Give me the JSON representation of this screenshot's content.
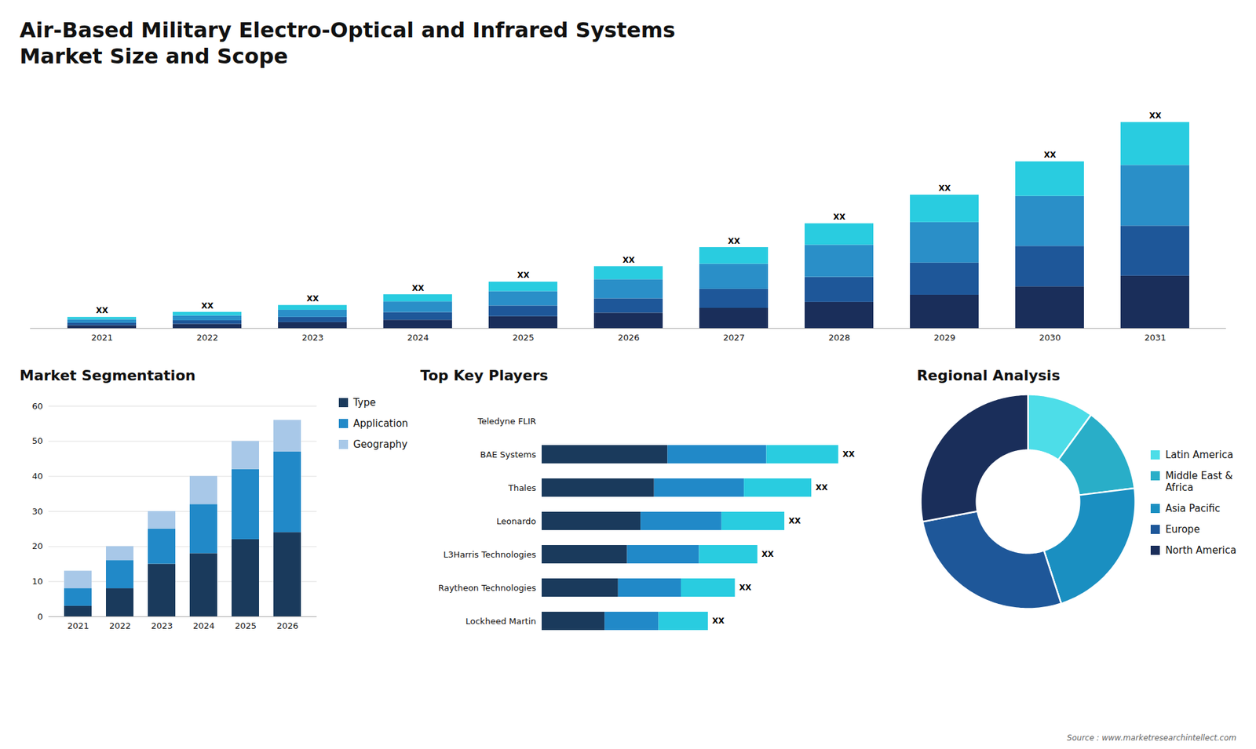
{
  "chart_data": [
    {
      "type": "bar",
      "stacked": true,
      "title": "Air-Based Military Electro-Optical and Infrared Systems",
      "subtitle": "Market Size and Scope",
      "categories": [
        "2021",
        "2022",
        "2023",
        "2024",
        "2025",
        "2026",
        "2027",
        "2028",
        "2029",
        "2030",
        "2031"
      ],
      "series": [
        {
          "color": "#1a2e5a",
          "values": [
            1.2,
            1.8,
            2.5,
            3.5,
            5.0,
            6.5,
            8.5,
            11.0,
            14.0,
            17.5,
            22.0
          ]
        },
        {
          "color": "#1e5799",
          "values": [
            1.0,
            1.5,
            2.2,
            3.2,
            4.5,
            6.0,
            8.0,
            10.5,
            13.5,
            17.0,
            21.0
          ]
        },
        {
          "color": "#2a8fc8",
          "values": [
            1.5,
            2.0,
            3.0,
            4.5,
            6.0,
            8.0,
            10.5,
            13.5,
            17.0,
            21.0,
            25.5
          ]
        },
        {
          "color": "#29cce0",
          "values": [
            1.0,
            1.5,
            2.0,
            3.0,
            4.0,
            5.5,
            7.0,
            9.0,
            11.5,
            14.5,
            18.0
          ]
        }
      ],
      "value_labels": [
        "XX",
        "XX",
        "XX",
        "XX",
        "XX",
        "XX",
        "XX",
        "XX",
        "XX",
        "XX",
        "XX"
      ],
      "ylim": [
        0,
        102.07
      ],
      "tick_labels": "x",
      "annotations": [
        "Source : www.marketresearchintellect.com"
      ]
    },
    {
      "type": "bar",
      "stacked": true,
      "title": "Market Segmentation",
      "categories": [
        "2021",
        "2022",
        "2023",
        "2024",
        "2025",
        "2026"
      ],
      "series": [
        {
          "name": "Type",
          "color": "#1a3a5c",
          "values": [
            3,
            8,
            15,
            18,
            22,
            24
          ]
        },
        {
          "name": "Application",
          "color": "#2189c8",
          "values": [
            5,
            8,
            10,
            14,
            20,
            23
          ]
        },
        {
          "name": "Geography",
          "color": "#a8c8e8",
          "values": [
            5,
            4,
            5,
            8,
            8,
            9
          ]
        }
      ],
      "ylim": [
        0,
        60
      ],
      "yticks": [
        0,
        10,
        20,
        30,
        40,
        50,
        60
      ],
      "grid": true,
      "legend": "right"
    },
    {
      "type": "bar",
      "stacked": true,
      "orientation": "horizontal",
      "title": "Top Key Players",
      "categories": [
        "Teledyne FLIR",
        "BAE Systems",
        "Thales",
        "Leonardo",
        "L3Harris Technologies",
        "Raytheon Technologies",
        "Lockheed Martin"
      ],
      "series": [
        {
          "color": "#1a3a5c",
          "values": [
            0,
            28,
            25,
            22,
            19,
            17,
            14
          ]
        },
        {
          "color": "#2189c8",
          "values": [
            0,
            22,
            20,
            18,
            16,
            14,
            12
          ]
        },
        {
          "color": "#29cce0",
          "values": [
            0,
            16,
            15,
            14,
            13,
            12,
            11
          ]
        }
      ],
      "value_labels": [
        null,
        "XX",
        "XX",
        "XX",
        "XX",
        "XX",
        "XX"
      ],
      "xlim": [
        0,
        77.88
      ],
      "tick_labels": "y"
    },
    {
      "type": "pie",
      "title": "Regional Analysis",
      "categories": [
        "Latin America",
        "Middle East &\nAfrica",
        "Asia Pacific",
        "Europe",
        "North America"
      ],
      "values": [
        10,
        13,
        22,
        27,
        28
      ],
      "colors": [
        "#4ddde8",
        "#29aec8",
        "#1a8fc1",
        "#1e5799",
        "#1a2e5a"
      ],
      "legend": "right"
    }
  ]
}
